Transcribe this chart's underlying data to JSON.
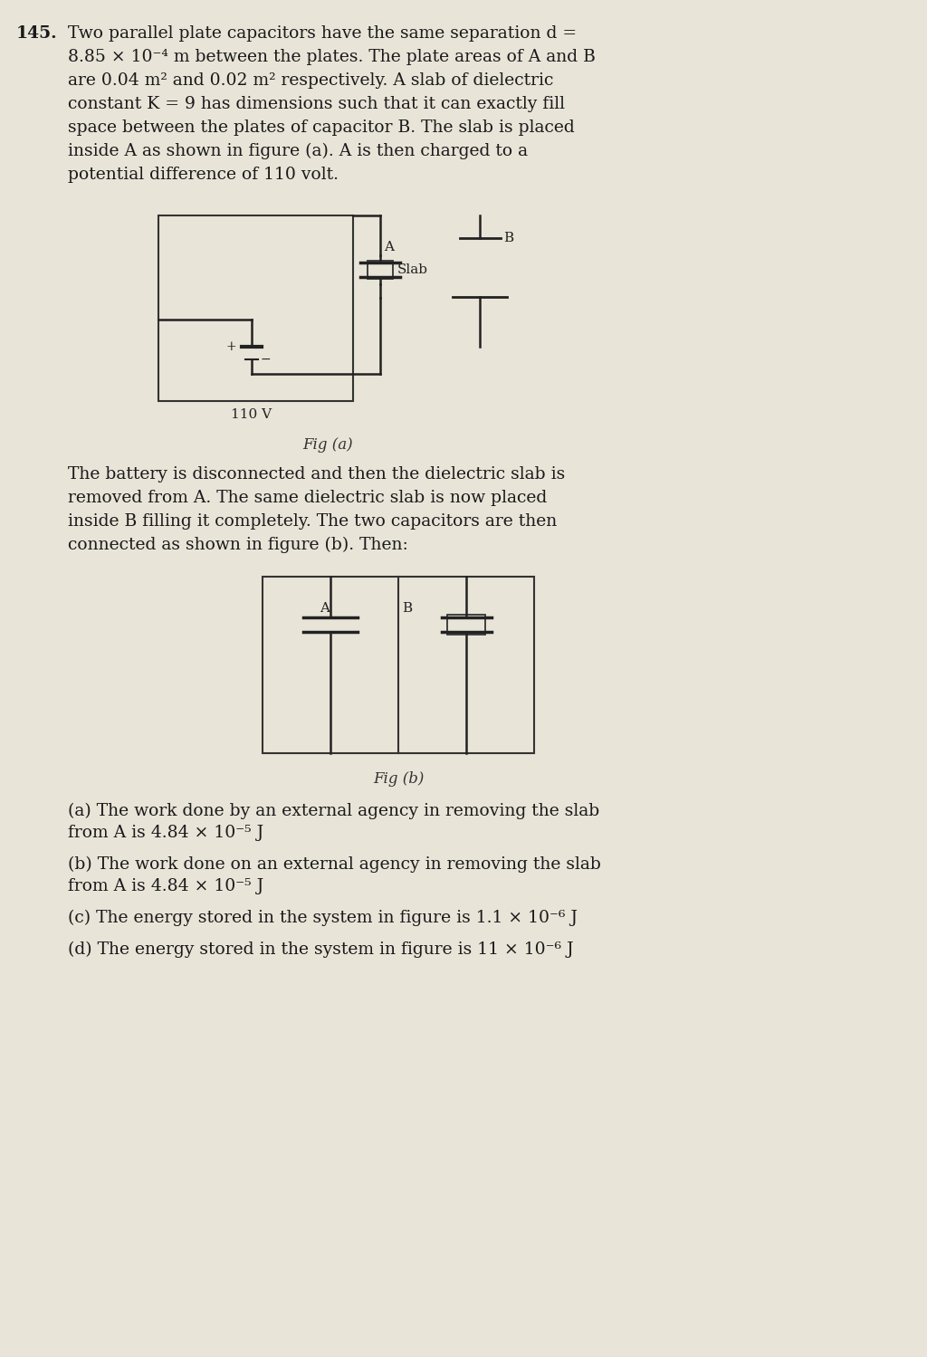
{
  "bg_color": "#e8e4d8",
  "text_color": "#1a1a1a",
  "font_size_main": 13.5,
  "font_size_options": 13.5,
  "font_size_small": 12,
  "fig_a_caption": "Fig (a)",
  "fig_b_caption": "Fig (b)",
  "main_lines": [
    "Two parallel plate capacitors have the same separation d =",
    "8.85 × 10⁻⁴ m between the plates. The plate areas of A and B",
    "are 0.04 m² and 0.02 m² respectively. A slab of dielectric",
    "constant K = 9 has dimensions such that it can exactly fill",
    "space between the plates of capacitor B. The slab is placed",
    "inside A as shown in figure (a). A is then charged to a",
    "potential difference of 110 volt."
  ],
  "middle_lines": [
    "The battery is disconnected and then the dielectric slab is",
    "removed from A. The same dielectric slab is now placed",
    "inside B filling it completely. The two capacitors are then",
    "connected as shown in figure (b). Then:"
  ],
  "opt_lines": [
    [
      "(a) The work done by an external agency in removing the sla",
      "from A is 4.84 × 10⁻⁵ J"
    ],
    [
      "(b) The work done on an external agency in removing the sl",
      "from A is 4.84 × 10⁻⁵ J"
    ],
    [
      "(c) The energy stored in the system in figure is 1.1 × 10⁻⁶ J"
    ],
    [
      "(d) The energy stored in the system in figure is 11 × 10⁻⁶ J"
    ]
  ]
}
